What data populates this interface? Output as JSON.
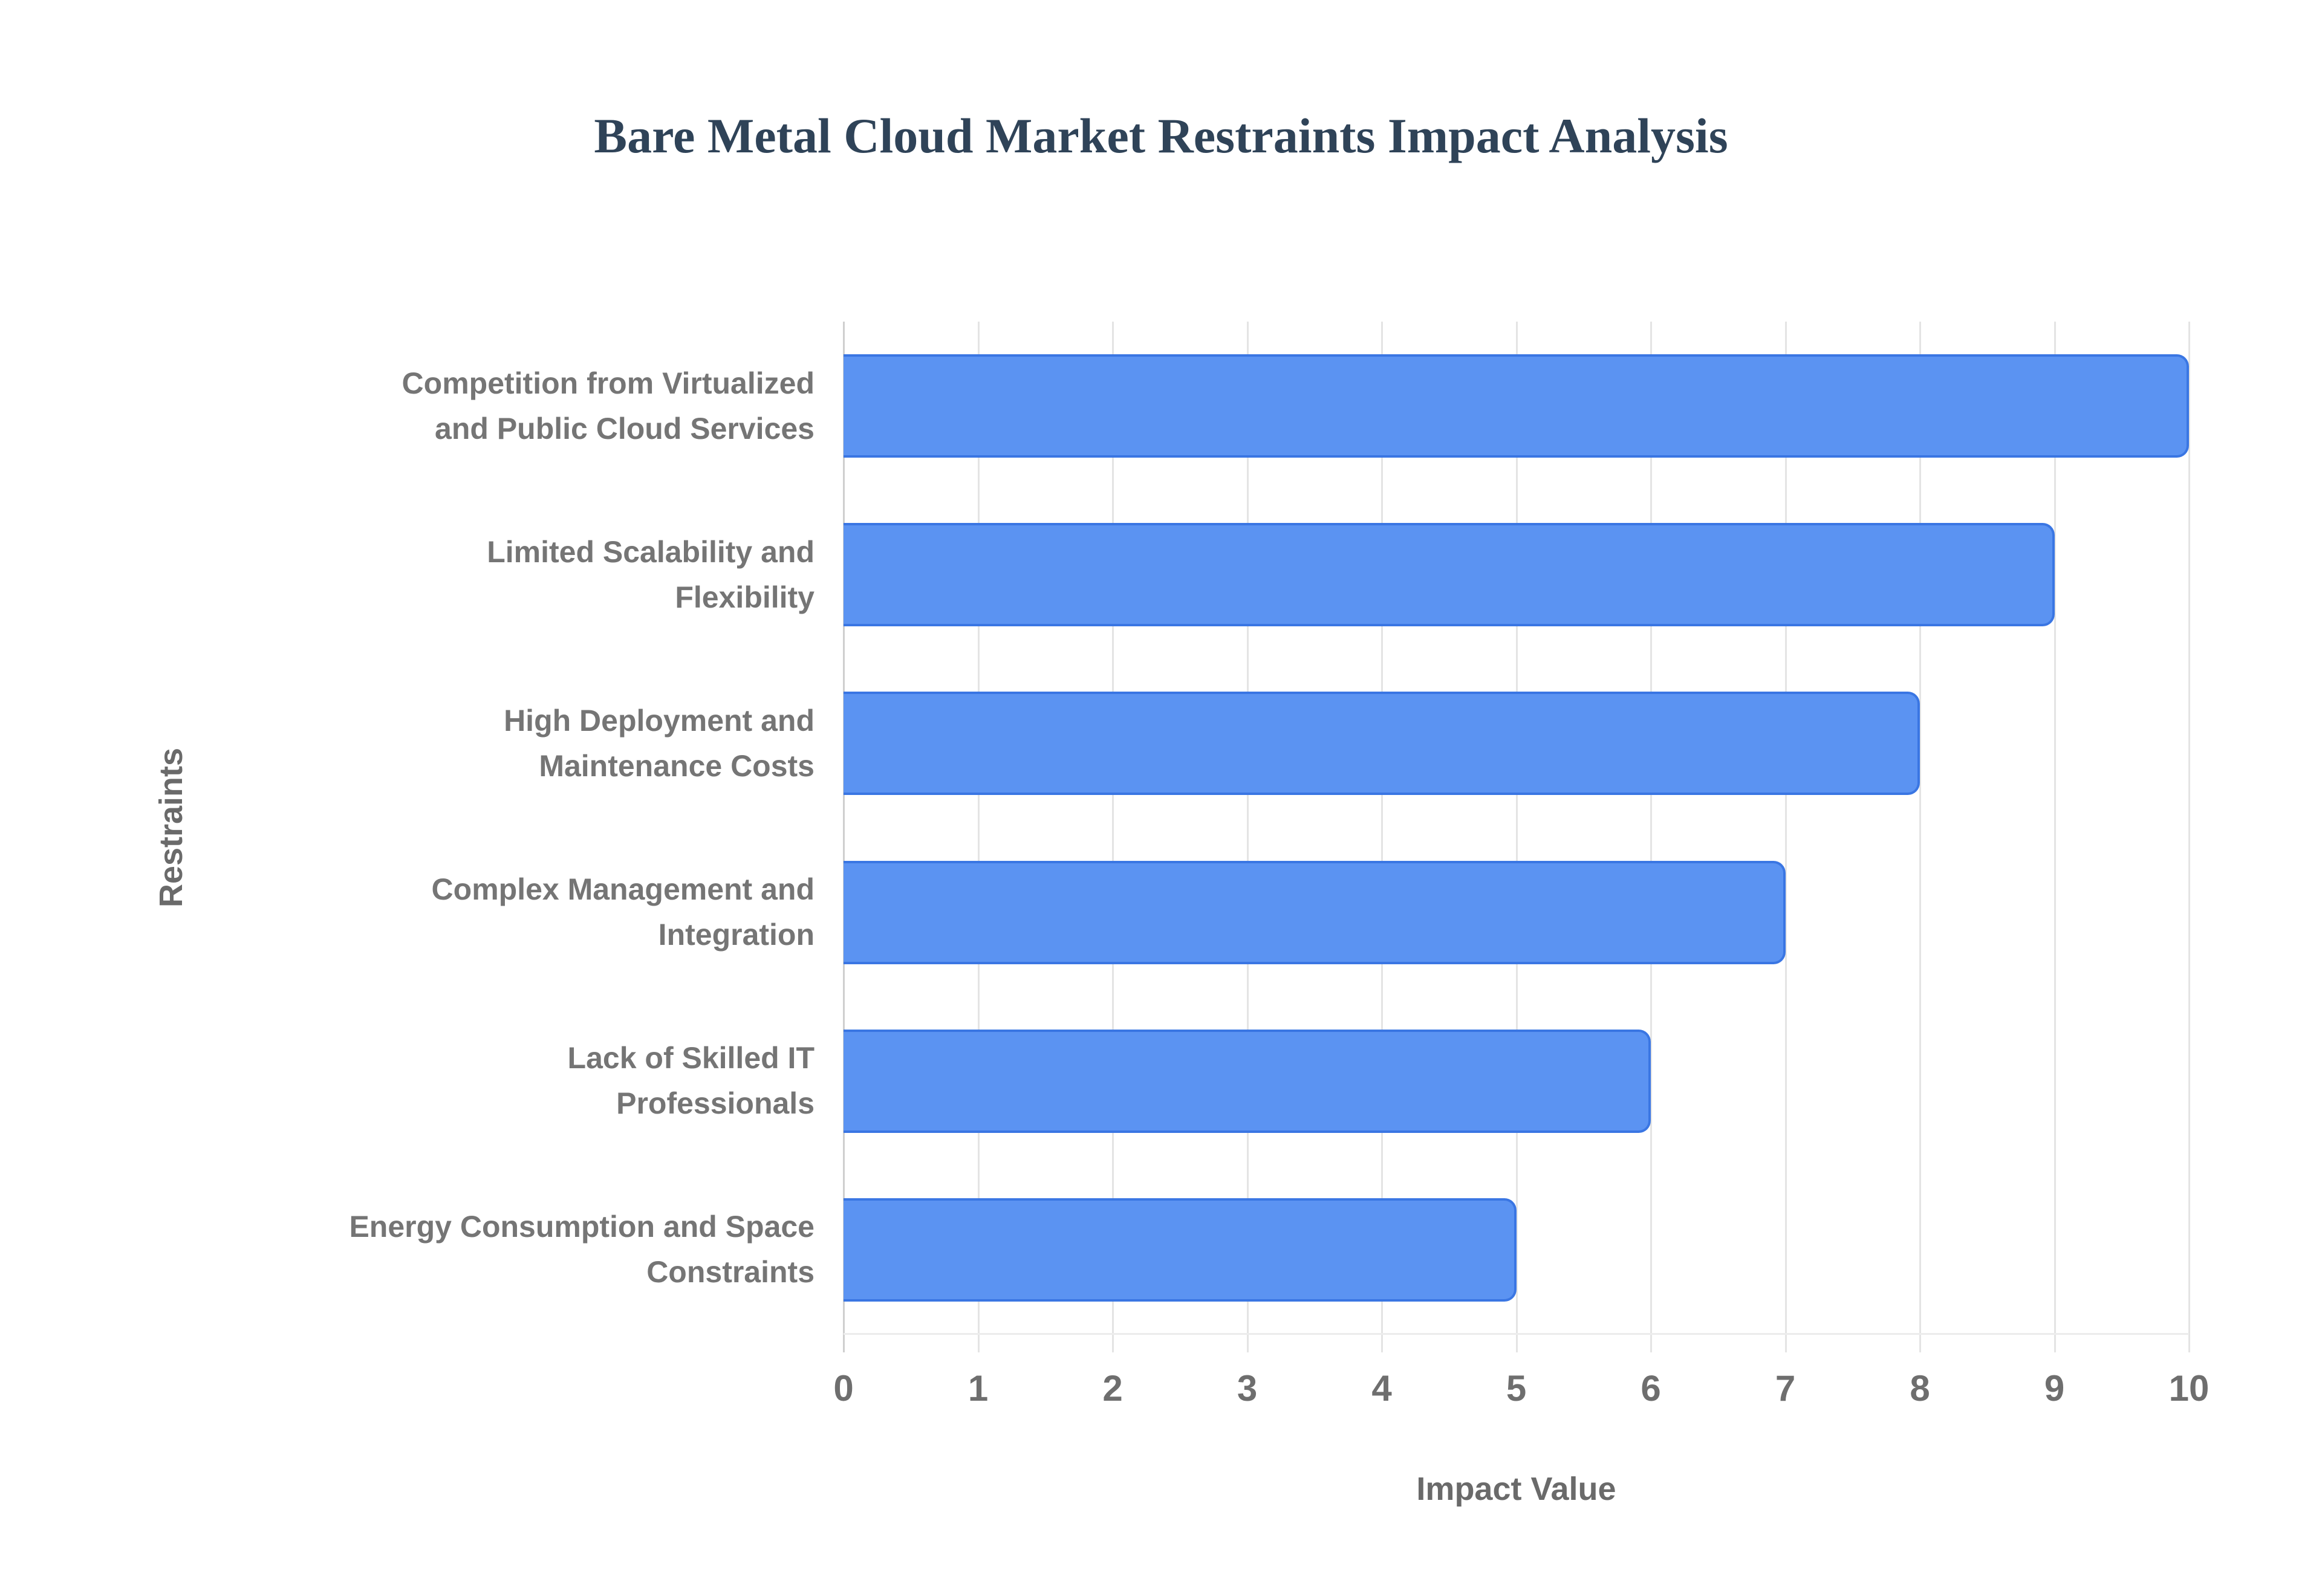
{
  "page": {
    "background": "#ffffff"
  },
  "chart_data": {
    "type": "bar",
    "orientation": "horizontal",
    "title": "Bare Metal Cloud Market Restraints Impact Analysis",
    "categories": [
      "Competition from Virtualized\nand Public Cloud Services",
      "Limited Scalability and\nFlexibility",
      "High Deployment and\nMaintenance Costs",
      "Complex Management and\nIntegration",
      "Lack of Skilled IT\nProfessionals",
      "Energy Consumption and Space\nConstraints"
    ],
    "values": [
      10,
      9,
      8,
      7,
      6,
      5
    ],
    "xlabel": "Impact Value",
    "ylabel": "Restraints",
    "xlim": [
      0,
      10
    ],
    "xticks": [
      0,
      1,
      2,
      3,
      4,
      5,
      6,
      7,
      8,
      9,
      10
    ],
    "grid": true,
    "legend_visible": false,
    "colors": {
      "title": "#2f4358",
      "bar_fill": "#5b93f2",
      "bar_border": "#3a76e3",
      "category_label": "#757575",
      "tick_label": "#6e6e6e",
      "axis_title": "#6a6a6a",
      "gridline": "#e4e4e4",
      "zero_line": "#cfcfcf",
      "baseline": "#ececec",
      "background": "#ffffff"
    }
  }
}
